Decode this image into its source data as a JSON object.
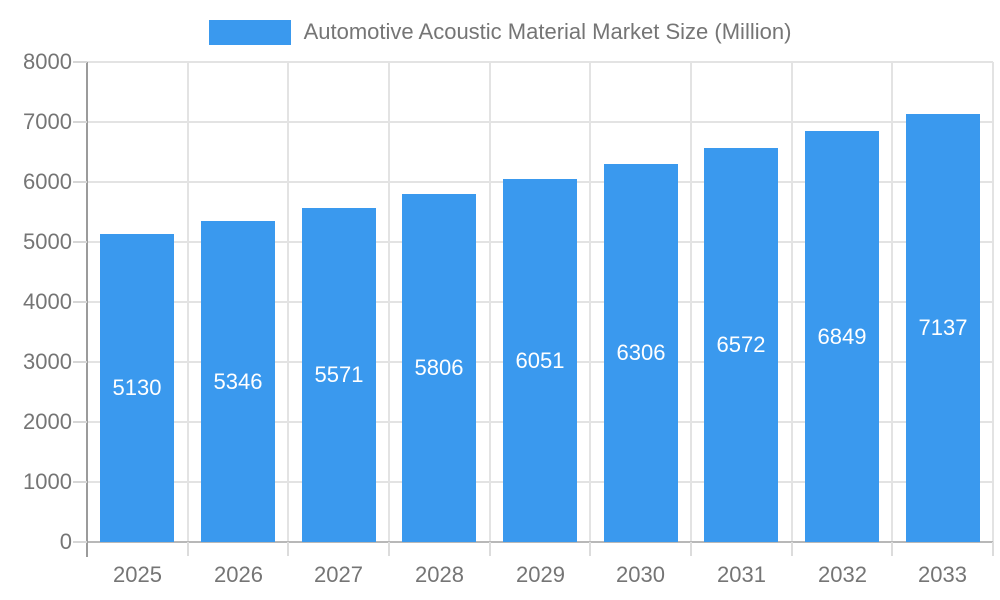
{
  "legend": {
    "label": "Automotive Acoustic Material Market Size (Million)"
  },
  "chart_data": {
    "type": "bar",
    "title": "Automotive Acoustic Material Market Size (Million)",
    "series_name": "Automotive Acoustic Material Market Size (Million)",
    "categories": [
      "2025",
      "2026",
      "2027",
      "2028",
      "2029",
      "2030",
      "2031",
      "2032",
      "2033"
    ],
    "values": [
      5130,
      5346,
      5571,
      5806,
      6051,
      6306,
      6572,
      6849,
      7137
    ],
    "value_labels": [
      "5130",
      "5346",
      "5571",
      "5806",
      "6051",
      "6306",
      "6572",
      "6849",
      "7137"
    ],
    "xlabel": "",
    "ylabel": "",
    "ylim": [
      0,
      8000
    ],
    "y_tick_labels": [
      "0",
      "1000",
      "2000",
      "3000",
      "4000",
      "5000",
      "6000",
      "7000",
      "8000"
    ],
    "grid": true,
    "legend_position": "top",
    "colors": {
      "bar": "#3A99EE",
      "value_label": "#FFFFFF",
      "axis_text": "#757575",
      "legend_text": "#757575",
      "gridline": "#E3E3E3",
      "y_axis_line": "#9B9B9B",
      "x_axis_line": "#B8B8B8"
    }
  }
}
